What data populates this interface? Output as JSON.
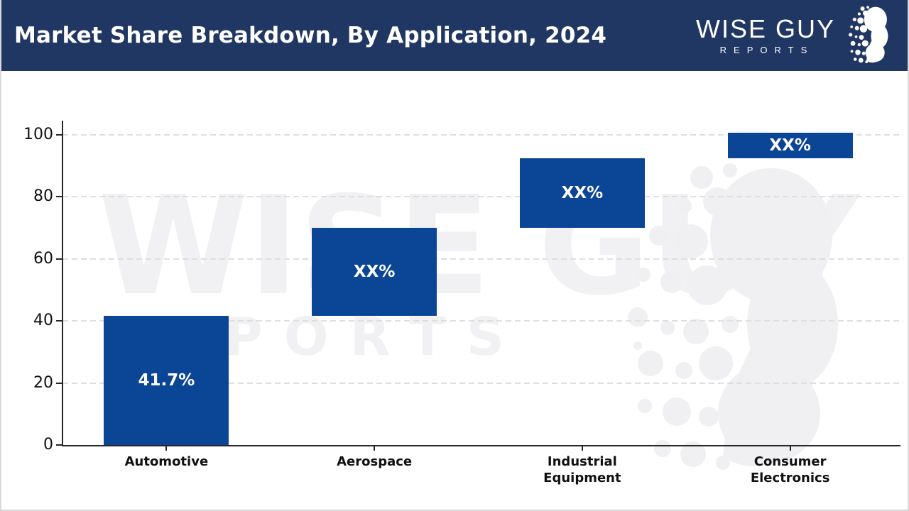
{
  "header": {
    "title": "Market Share Breakdown, By Application, 2024",
    "logo": {
      "line1": "WISE GUY",
      "line2": "REPORTS"
    }
  },
  "watermark": {
    "line1": "WISE GUY",
    "line2": "REPORTS"
  },
  "chart_data": {
    "type": "bar",
    "subtype": "waterfall-floating-bars",
    "title": "Market Share Breakdown, By Application, 2024",
    "categories": [
      "Automotive",
      "Aerospace",
      "Industrial Equipment",
      "Consumer Electronics"
    ],
    "segments": [
      {
        "start": 0,
        "end": 41.7,
        "label": "41.7%"
      },
      {
        "start": 41.7,
        "end": 70.0,
        "label": "XX%"
      },
      {
        "start": 70.0,
        "end": 92.3,
        "label": "XX%"
      },
      {
        "start": 92.3,
        "end": 100.5,
        "label": "XX%"
      }
    ],
    "yticks": [
      0,
      20,
      40,
      60,
      80,
      100
    ],
    "ylim": [
      0,
      104
    ],
    "xlabel": "",
    "ylabel": "",
    "grid": "horizontal-dashed",
    "legend": "none",
    "bar_color": "#0b4596",
    "bar_label_color": "#ffffff",
    "axis_color": "#262626",
    "grid_color": "#dedede",
    "header_color": "#213763",
    "watermark_color": "#f1f1f3"
  }
}
